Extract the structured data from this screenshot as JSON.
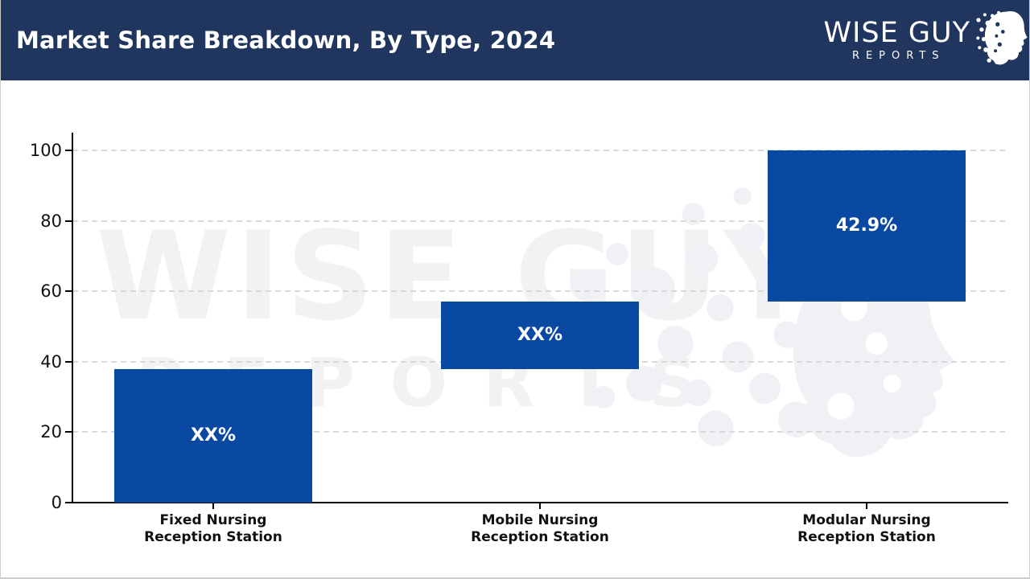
{
  "header": {
    "title": "Market Share Breakdown, By Type, 2024",
    "bg_color": "#20365f",
    "logo": {
      "name": "WISE GUY",
      "tagline": "REPORTS"
    }
  },
  "watermark": {
    "line1": "WISE GUY",
    "line2": "REPORTS"
  },
  "chart_data": {
    "type": "bar",
    "subtype": "stacked-waterfall",
    "title": "Market Share Breakdown, By Type, 2024",
    "categories": [
      "Fixed Nursing\nReception Station",
      "Mobile Nursing\nReception Station",
      "Modular Nursing\nReception Station"
    ],
    "bars": [
      {
        "category_index": 0,
        "base": 0,
        "top": 38.0,
        "label": "XX%"
      },
      {
        "category_index": 1,
        "base": 38.0,
        "top": 57.1,
        "label": "XX%"
      },
      {
        "category_index": 2,
        "base": 57.1,
        "top": 100.0,
        "label": "42.9%"
      }
    ],
    "xlabel": "",
    "ylabel": "",
    "yticks": [
      0,
      20,
      40,
      60,
      80,
      100
    ],
    "ylim": [
      0,
      105
    ],
    "grid": "horizontal-dashed",
    "legend": "none",
    "bar_color": "#0a49a2",
    "gridline_color": "#d9d9d9",
    "axis_color": "#000000",
    "bar_label_color": "#ffffff",
    "watermark_color": "#f1f2f4"
  }
}
